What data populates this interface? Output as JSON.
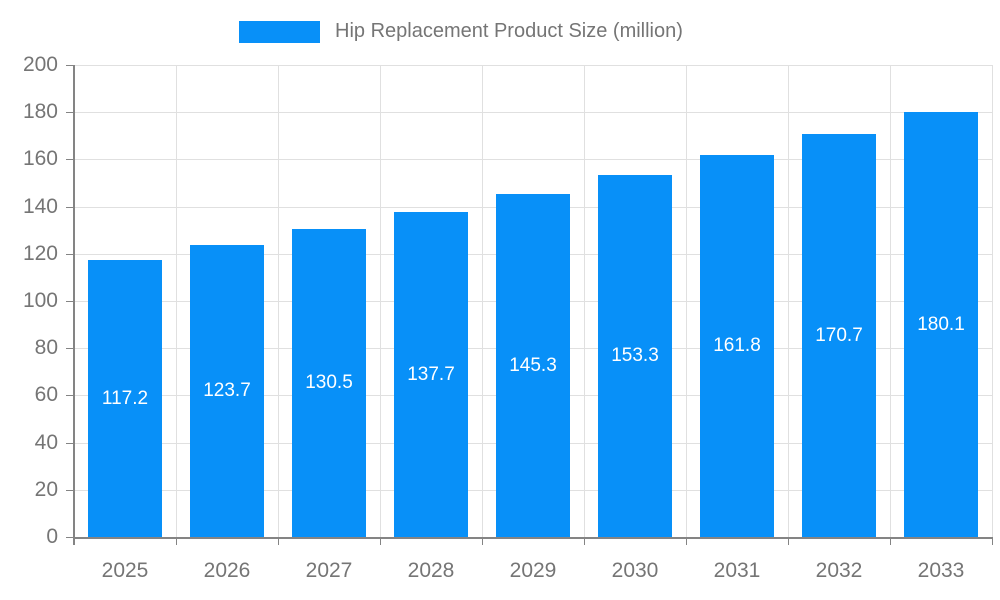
{
  "legend": {
    "label": "Hip Replacement Product Size (million)",
    "swatch_color": "#0890F8"
  },
  "chart_data": {
    "type": "bar",
    "title": "Hip Replacement Product Size (million)",
    "categories": [
      "2025",
      "2026",
      "2027",
      "2028",
      "2029",
      "2030",
      "2031",
      "2032",
      "2033"
    ],
    "values": [
      117.2,
      123.7,
      130.5,
      137.7,
      145.3,
      153.3,
      161.8,
      170.7,
      180.1
    ],
    "xlabel": "",
    "ylabel": "",
    "ylim": [
      0,
      200
    ],
    "ytick_step": 20,
    "grid": true,
    "legend_position": "top",
    "colors": {
      "bar": "#0890F8",
      "bar_value_label": "#ffffff",
      "axis_text": "#757575",
      "grid_line": "#e0e0e0",
      "axis_line": "#848484"
    }
  }
}
